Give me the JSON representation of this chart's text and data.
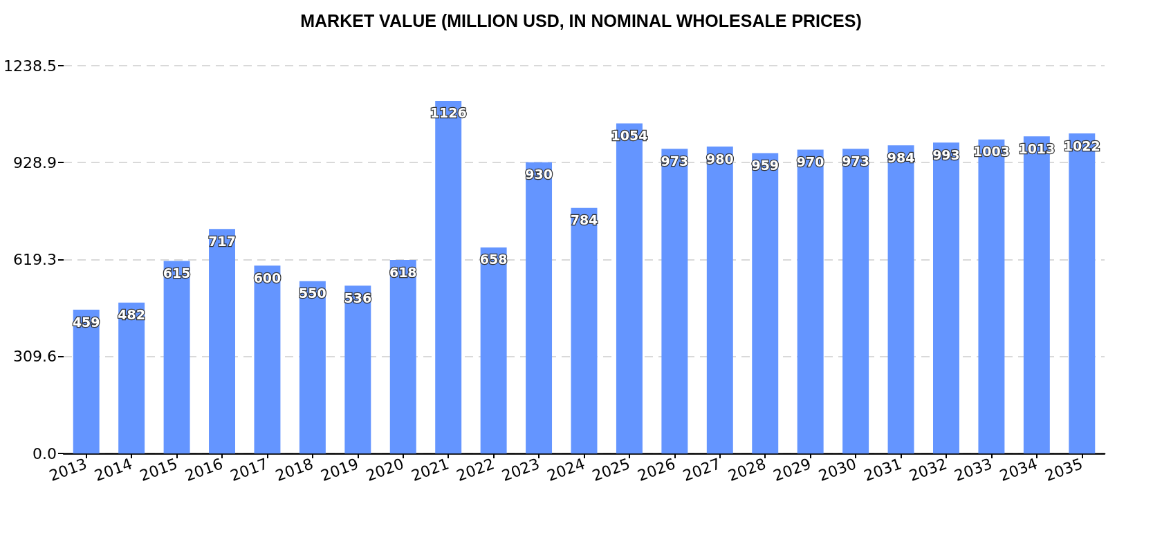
{
  "chart_data": {
    "type": "bar",
    "title": "MARKET VALUE (MILLION USD, IN NOMINAL WHOLESALE PRICES)",
    "categories": [
      "2013",
      "2014",
      "2015",
      "2016",
      "2017",
      "2018",
      "2019",
      "2020",
      "2021",
      "2022",
      "2023",
      "2024",
      "2025",
      "2026",
      "2027",
      "2028",
      "2029",
      "2030",
      "2031",
      "2032",
      "2033",
      "2034",
      "2035"
    ],
    "values": [
      459,
      482,
      615,
      717,
      600,
      550,
      536,
      618,
      1126,
      658,
      930,
      784,
      1054,
      973,
      980,
      959,
      970,
      973,
      984,
      993,
      1003,
      1013,
      1022
    ],
    "color": "#6495ff",
    "ylim": [
      0,
      1238.5
    ],
    "yticks": [
      {
        "value": 0,
        "label": "0.0"
      },
      309.6,
      619.3,
      928.9,
      1238.5
    ],
    "grid": "y",
    "data_labels": true
  }
}
